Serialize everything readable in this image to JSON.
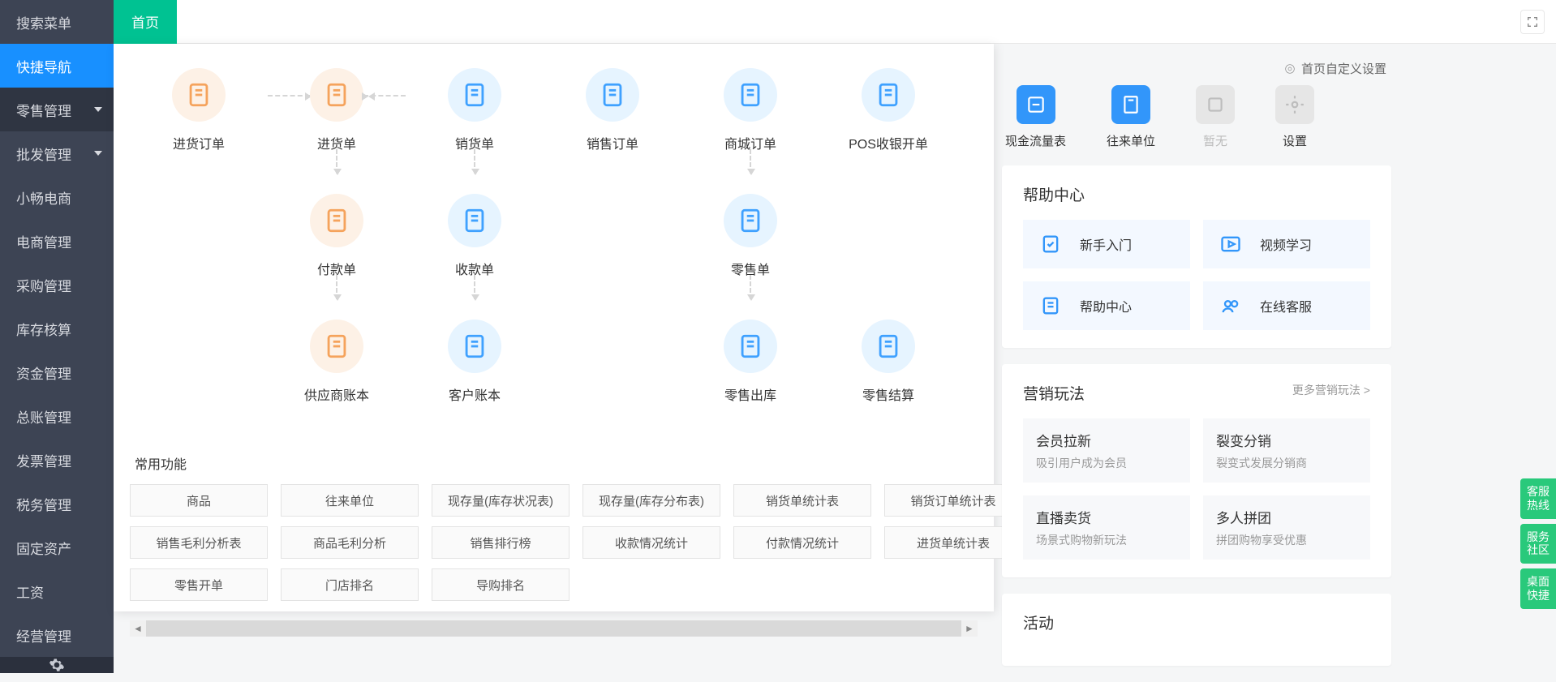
{
  "sidebar": {
    "items": [
      {
        "label": "搜索菜单",
        "cls": "search"
      },
      {
        "label": "快捷导航",
        "cls": "active"
      },
      {
        "label": "零售管理",
        "cls": "dark",
        "caret": true
      },
      {
        "label": "批发管理",
        "cls": "",
        "caret": true
      },
      {
        "label": "小畅电商",
        "cls": ""
      },
      {
        "label": "电商管理",
        "cls": ""
      },
      {
        "label": "采购管理",
        "cls": ""
      },
      {
        "label": "库存核算",
        "cls": ""
      },
      {
        "label": "资金管理",
        "cls": ""
      },
      {
        "label": "总账管理",
        "cls": ""
      },
      {
        "label": "发票管理",
        "cls": ""
      },
      {
        "label": "税务管理",
        "cls": ""
      },
      {
        "label": "固定资产",
        "cls": ""
      },
      {
        "label": "工资",
        "cls": ""
      },
      {
        "label": "经营管理",
        "cls": ""
      }
    ]
  },
  "topbar": {
    "home": "首页"
  },
  "flyout": {
    "nodes": [
      {
        "row": 0,
        "col": 0,
        "label": "进货订单",
        "color": "orange",
        "down": false,
        "rarrow": true
      },
      {
        "row": 0,
        "col": 1,
        "label": "进货单",
        "color": "orange",
        "down": true
      },
      {
        "row": 0,
        "col": 2,
        "label": "销货单",
        "color": "blue",
        "down": true,
        "larrow": true
      },
      {
        "row": 0,
        "col": 3,
        "label": "销售订单",
        "color": "blue"
      },
      {
        "row": 0,
        "col": 4,
        "label": "商城订单",
        "color": "blue",
        "down": true
      },
      {
        "row": 0,
        "col": 5,
        "label": "POS收银开单",
        "color": "blue"
      },
      {
        "row": 1,
        "col": 1,
        "label": "付款单",
        "color": "orange",
        "down": true
      },
      {
        "row": 1,
        "col": 2,
        "label": "收款单",
        "color": "blue",
        "down": true
      },
      {
        "row": 1,
        "col": 4,
        "label": "零售单",
        "color": "blue",
        "down": true
      },
      {
        "row": 2,
        "col": 1,
        "label": "供应商账本",
        "color": "orange"
      },
      {
        "row": 2,
        "col": 2,
        "label": "客户账本",
        "color": "blue"
      },
      {
        "row": 2,
        "col": 4,
        "label": "零售出库",
        "color": "blue"
      },
      {
        "row": 2,
        "col": 5,
        "label": "零售结算",
        "color": "blue"
      }
    ],
    "commonTitle": "常用功能",
    "common": [
      "商品",
      "往来单位",
      "现存量(库存状况表)",
      "现存量(库存分布表)",
      "销货单统计表",
      "销货订单统计表",
      "销售毛利分析表",
      "商品毛利分析",
      "销售排行榜",
      "收款情况统计",
      "付款情况统计",
      "进货单统计表",
      "零售开单",
      "门店排名",
      "导购排名"
    ]
  },
  "right": {
    "customize": "首页自定义设置",
    "quick": [
      {
        "label": "现金流量表",
        "cls": "blue"
      },
      {
        "label": "往来单位",
        "cls": "blue"
      },
      {
        "label": "暂无",
        "cls": "grey",
        "disabled": true
      },
      {
        "label": "设置",
        "cls": "grey"
      }
    ],
    "help": {
      "title": "帮助中心",
      "items": [
        "新手入门",
        "视频学习",
        "帮助中心",
        "在线客服"
      ]
    },
    "marketing": {
      "title": "营销玩法",
      "more": "更多营销玩法 >",
      "items": [
        {
          "t": "会员拉新",
          "d": "吸引用户成为会员"
        },
        {
          "t": "裂变分销",
          "d": "裂变式发展分销商"
        },
        {
          "t": "直播卖货",
          "d": "场景式购物新玩法"
        },
        {
          "t": "多人拼团",
          "d": "拼团购物享受优惠"
        }
      ]
    },
    "activity": {
      "title": "活动"
    }
  },
  "floatTabs": [
    "客服热线",
    "服务社区",
    "桌面快捷"
  ]
}
